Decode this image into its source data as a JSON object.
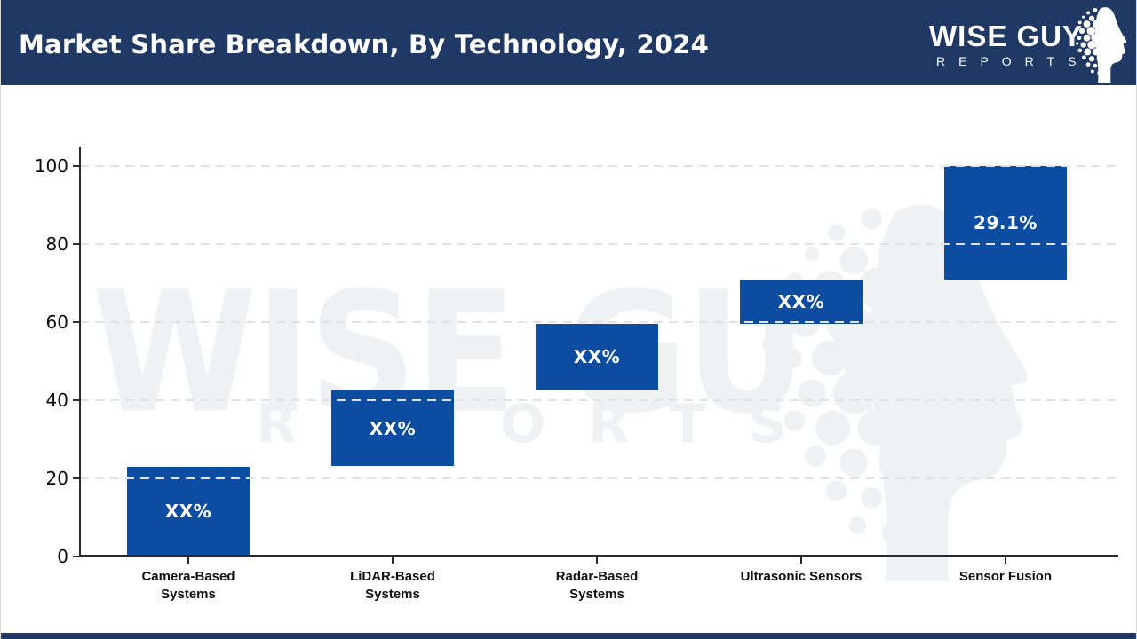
{
  "header": {
    "title": "Market Share Breakdown, By Technology, 2024",
    "brand": {
      "line1": "WISE GUY",
      "line2": "REPORTS"
    }
  },
  "watermark": {
    "line1": "WISE GUY",
    "line2": "REPORTS"
  },
  "footer": {},
  "colors": {
    "header_bg": "#203864",
    "footer_bg": "#203864",
    "bar": "#0c4da2",
    "grid": "#e2e2e2",
    "axis": "#2a2a2a",
    "title_text": "#ffffff",
    "watermark_text": "#f0f1f3"
  },
  "chart_data": {
    "type": "bar",
    "subtype": "waterfall",
    "title": "Market Share Breakdown, By Technology, 2024",
    "xlabel": "",
    "ylabel": "",
    "ylim": [
      0,
      105
    ],
    "yticks": [
      0,
      20,
      40,
      60,
      80,
      100
    ],
    "grid": "horizontal-dashed",
    "legend": "none",
    "categories": [
      {
        "label": "Camera-Based Systems",
        "line1": "Camera-Based",
        "line2": "Systems"
      },
      {
        "label": "LiDAR-Based Systems",
        "line1": "LiDAR-Based",
        "line2": "Systems"
      },
      {
        "label": "Radar-Based Systems",
        "line1": "Radar-Based",
        "line2": "Systems"
      },
      {
        "label": "Ultrasonic Sensors",
        "line1": "Ultrasonic Sensors",
        "line2": ""
      },
      {
        "label": "Sensor Fusion",
        "line1": "Sensor Fusion",
        "line2": ""
      }
    ],
    "bars": [
      {
        "label": "XX%",
        "from": 0,
        "to": 23
      },
      {
        "label": "XX%",
        "from": 23,
        "to": 42.5
      },
      {
        "label": "XX%",
        "from": 42.5,
        "to": 59.5
      },
      {
        "label": "XX%",
        "from": 59.5,
        "to": 70.9
      },
      {
        "label": "29.1%",
        "from": 70.9,
        "to": 100
      }
    ]
  }
}
